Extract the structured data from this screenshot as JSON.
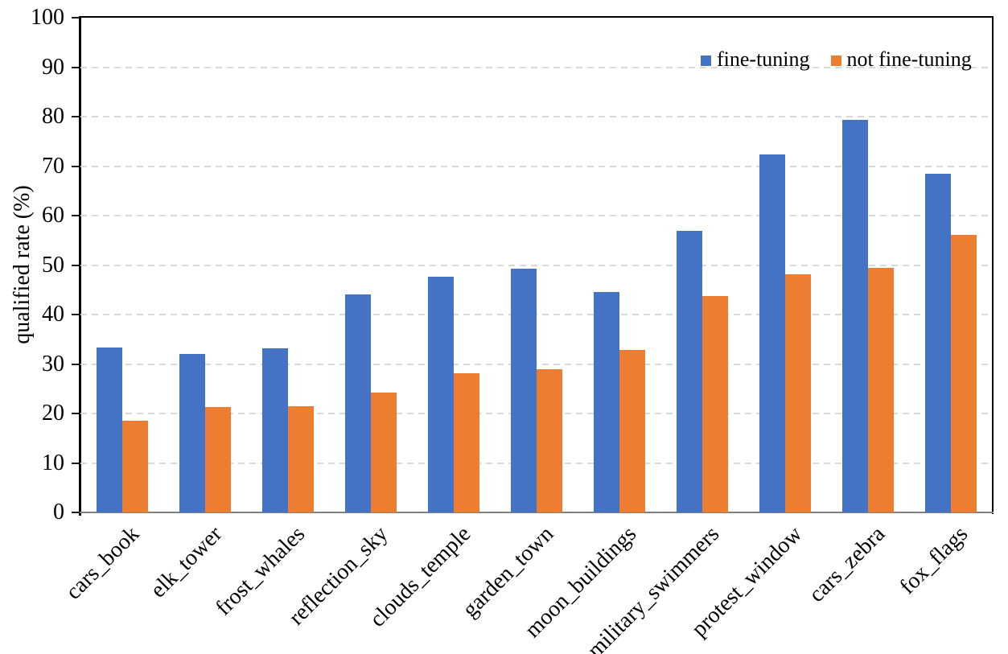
{
  "chart_data": {
    "type": "bar",
    "title": "",
    "xlabel": "",
    "ylabel": "qualified rate (%)",
    "ylim": [
      0,
      100
    ],
    "yticks": [
      0,
      10,
      20,
      30,
      40,
      50,
      60,
      70,
      80,
      90,
      100
    ],
    "grid": "horizontal-dashed",
    "legend_position": "top-right-inside",
    "categories": [
      "cars_book",
      "elk_tower",
      "frost_whales",
      "reflection_sky",
      "clouds_temple",
      "garden_town",
      "moon_buildings",
      "military_swimmers",
      "protest_window",
      "cars_zebra",
      "fox_flags"
    ],
    "series": [
      {
        "name": "fine-tuning",
        "color": "#4472C4",
        "values": [
          33.4,
          32.1,
          33.1,
          44.1,
          47.7,
          49.3,
          44.5,
          56.9,
          72.4,
          79.4,
          68.4
        ]
      },
      {
        "name": "not fine-tuning",
        "color": "#ED7D31",
        "values": [
          18.5,
          21.3,
          21.5,
          24.3,
          28.1,
          28.9,
          32.9,
          43.7,
          48.1,
          49.4,
          56.1
        ]
      }
    ],
    "colors": {
      "gridline": "#d9d9d9",
      "axis": "#000000",
      "baseline": "#808080"
    }
  }
}
